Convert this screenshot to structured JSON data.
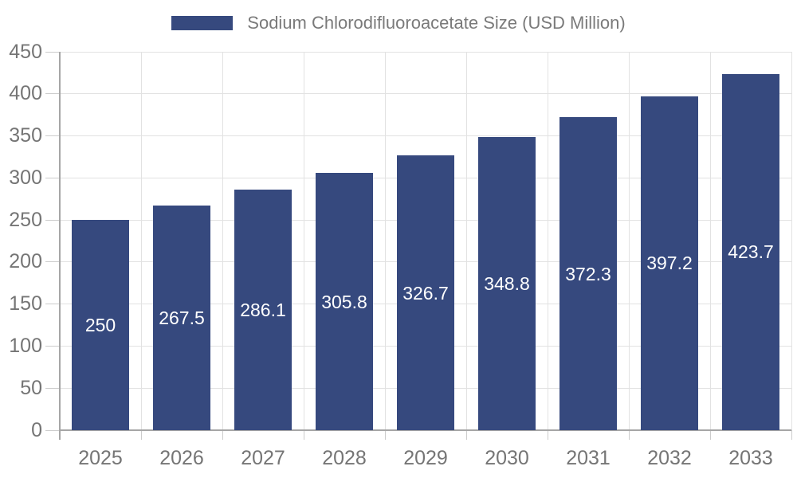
{
  "colors": {
    "background": "#ffffff",
    "bar": "#36497e",
    "axis_line": "#a6a6a6",
    "gridline": "#e2e2e2",
    "tick": "#cccccc",
    "axis_label_text": "#757575",
    "legend_text": "#7a7a7a",
    "value_label_text": "#ffffff"
  },
  "chart_data": {
    "type": "bar",
    "categories": [
      "2025",
      "2026",
      "2027",
      "2028",
      "2029",
      "2030",
      "2031",
      "2032",
      "2033"
    ],
    "series": [
      {
        "name": "Sodium Chlorodifluoroacetate Size (USD Million)",
        "color": "#36497e",
        "values": [
          250,
          267.5,
          286.1,
          305.8,
          326.7,
          348.8,
          372.3,
          397.2,
          423.7
        ],
        "value_labels": [
          "250",
          "267.5",
          "286.1",
          "305.8",
          "326.7",
          "348.8",
          "372.3",
          "397.2",
          "423.7"
        ]
      }
    ],
    "xlabel": "",
    "ylabel": "",
    "ylim": [
      0,
      450
    ],
    "yticks": [
      0,
      50,
      100,
      150,
      200,
      250,
      300,
      350,
      400,
      450
    ],
    "ytick_labels": [
      "0",
      "50",
      "100",
      "150",
      "200",
      "250",
      "300",
      "350",
      "400",
      "450"
    ],
    "grid": true,
    "legend_position": "top",
    "value_labels_inside_bars": true
  }
}
